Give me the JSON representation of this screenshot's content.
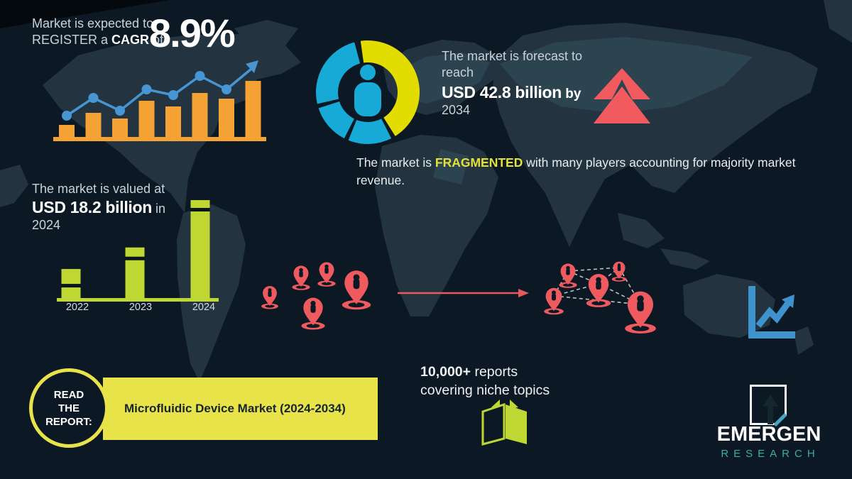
{
  "colors": {
    "background": "#0c1925",
    "map_land": "#233440",
    "map_land_light": "#2e4753",
    "orange": "#f3a233",
    "line_blue": "#4795d2",
    "cyan": "#18aad6",
    "yellow": "#e9e34a",
    "donut_yellow": "#e3dc00",
    "red": "#ef5a5f",
    "green": "#bfd732",
    "icon_blue": "#3e93cf",
    "teal": "#3aaca8"
  },
  "cagr": {
    "line1": "Market is expected to",
    "line2_pre": "REGISTER a ",
    "line2_bold": "CAGR",
    "line2_post": " of",
    "value": "8.9%"
  },
  "valuation": {
    "line1": "The market is valued at",
    "amount": "USD 18.2 billion",
    "suffix": " in",
    "year": "2024"
  },
  "forecast": {
    "line1": "The market is forecast to",
    "line2": "reach",
    "amount": "USD 42.8 billion",
    "suffix": " by",
    "year": "2034"
  },
  "fragmentation": {
    "prefix": "The market is ",
    "keyword": "FRAGMENTED",
    "suffix": " with many players accounting for majority market revenue."
  },
  "cta": {
    "circle_lines": [
      "READ",
      "THE",
      "REPORT:"
    ],
    "banner": "Microfluidic Device Market (2024-2034)"
  },
  "reports": {
    "count": "10,000+",
    "rest": " reports",
    "line2": "covering niche topics"
  },
  "logo": {
    "name": "EMERGEN",
    "sub": "RESEARCH"
  },
  "chart_data": [
    {
      "type": "bar",
      "name": "market-growth-trend",
      "title": "Market is expected to REGISTER a CAGR of 8.9%",
      "description": "Decorative rising orange bar chart with blue dotted trend line ending in an upward arrow; axes unlabeled",
      "categories": [
        "",
        "",
        "",
        "",
        "",
        "",
        "",
        ""
      ],
      "values": [
        17,
        34,
        26,
        51,
        43,
        62,
        54,
        79
      ],
      "line_values": [
        30,
        55,
        37,
        67,
        59,
        86,
        67,
        98
      ],
      "units": "relative height (unlabeled)",
      "bar_color": "#f3a233",
      "line_color": "#4795d2"
    },
    {
      "type": "bar",
      "name": "market-valuation-by-year",
      "title": "The market is valued at USD 18.2 billion in 2024",
      "categories": [
        "2022",
        "2023",
        "2024"
      ],
      "values": [
        5.4,
        9.4,
        18.2
      ],
      "units": "USD billion",
      "labeled_value": "USD 18.2 billion in 2024",
      "note": "2022 and 2023 estimated from bar heights; only 2024 value is labeled",
      "bar_color": "#bfd732"
    },
    {
      "type": "pie",
      "name": "market-share-donut",
      "description": "Decorative segmented donut with person icon in center; no labels shown",
      "slices": [
        {
          "label": "highlighted share",
          "value": 41,
          "color": "#e3dc00"
        },
        {
          "label": "remaining share",
          "value": 59,
          "color": "#18aad6"
        }
      ],
      "segments_deg": [
        {
          "from": 0,
          "to": 148,
          "color": "#e3dc00"
        },
        {
          "from": 153,
          "to": 202,
          "color": "#18aad6"
        },
        {
          "from": 207,
          "to": 252,
          "color": "#18aad6"
        },
        {
          "from": 257,
          "to": 345,
          "color": "#18aad6"
        },
        {
          "from": 352,
          "to": 360,
          "color": "#e3dc00"
        }
      ]
    }
  ]
}
